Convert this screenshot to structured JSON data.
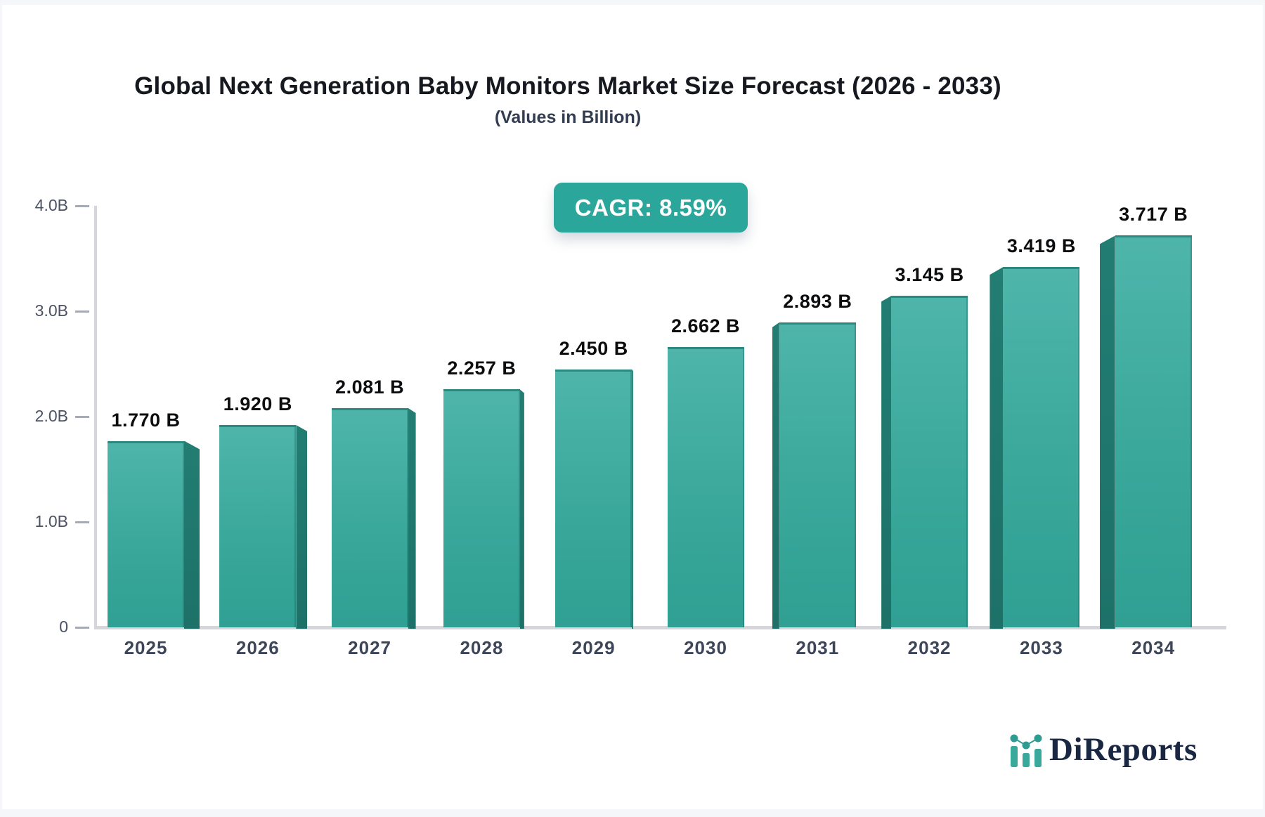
{
  "header": {
    "title": "Global Next Generation Baby Monitors Market Size Forecast (2026 - 2033)",
    "subtitle": "(Values in Billion)"
  },
  "badge": {
    "label": "CAGR: 8.59%",
    "background": "#2aa69b"
  },
  "chart_data": {
    "type": "bar",
    "title": "Global Next Generation Baby Monitors Market Size Forecast (2026 - 2033)",
    "subtitle": "(Values in Billion)",
    "categories": [
      "2025",
      "2026",
      "2027",
      "2028",
      "2029",
      "2030",
      "2031",
      "2032",
      "2033",
      "2034"
    ],
    "values": [
      1.77,
      1.92,
      2.081,
      2.257,
      2.45,
      2.662,
      2.893,
      3.145,
      3.419,
      3.717
    ],
    "value_labels": [
      "1.770 B",
      "1.920 B",
      "2.081 B",
      "2.257 B",
      "2.450 B",
      "2.662 B",
      "2.893 B",
      "3.145 B",
      "3.419 B",
      "3.717 B"
    ],
    "unit": "Billion",
    "xlabel": "",
    "ylabel": "",
    "ylim": [
      0,
      4
    ],
    "yticks": [
      {
        "label": "4.0B",
        "value": 4
      },
      {
        "label": "3.0B",
        "value": 3
      },
      {
        "label": "2.0B",
        "value": 2
      },
      {
        "label": "1.0B",
        "value": 1
      },
      {
        "label": "0",
        "value": 0
      }
    ],
    "grid": false,
    "legend": false,
    "style": "3d-perspective-bars"
  },
  "colors": {
    "bar_front_top": "#4fb5ab",
    "bar_front_bottom": "#2fa093",
    "bar_side_top": "#227d73",
    "bar_side_bottom": "#1d7168",
    "bar_top_edge": "#2a8a7f",
    "axis_line": "#d4d6db",
    "tick": "#a6aab3",
    "y_label": "#4a5263",
    "x_label": "#3d4659",
    "value_label": "#0c0d0f",
    "badge": "#2aa69b",
    "logo_navy": "#1a2742",
    "logo_teal": "#2f9c92"
  },
  "branding": {
    "logo_text": "DiReports"
  }
}
